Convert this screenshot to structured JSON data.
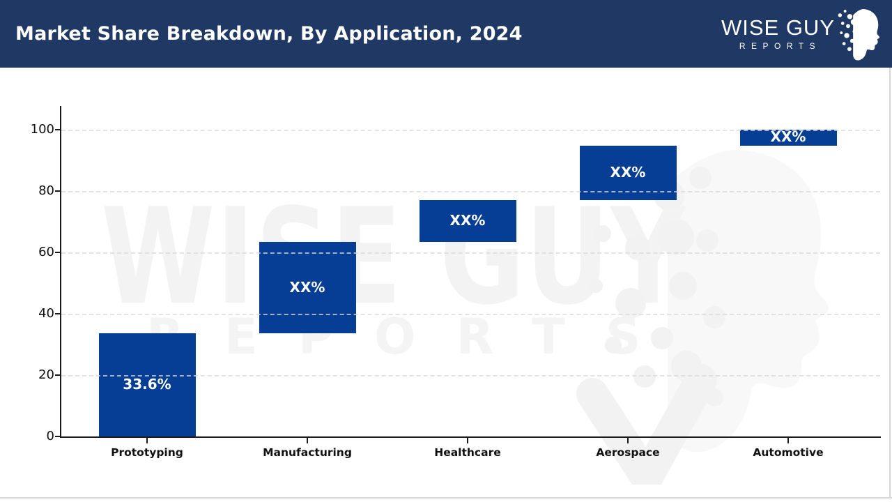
{
  "header": {
    "title": "Market Share Breakdown, By Application, 2024",
    "logo": {
      "line1": "WISE GUY",
      "line2": "REPORTS"
    }
  },
  "watermark": {
    "line1": "WISE GUY",
    "line2": "REPORTS"
  },
  "colors": {
    "header_bg": "#1f3864",
    "bar": "#053e94",
    "bar_label": "#ffffff",
    "gridline": "#d9d9d9",
    "axis": "#1a1a1a",
    "watermark": "#f3f3f3"
  },
  "chart_data": {
    "type": "bar",
    "subtype": "waterfall",
    "title": "Market Share Breakdown, By Application, 2024",
    "categories": [
      "Prototyping",
      "Manufacturing",
      "Healthcare",
      "Aerospace",
      "Automotive"
    ],
    "segments": [
      {
        "category": "Prototyping",
        "start": 0,
        "end": 33.6,
        "label": "33.6%"
      },
      {
        "category": "Manufacturing",
        "start": 33.6,
        "end": 63.4,
        "label": "XX%"
      },
      {
        "category": "Healthcare",
        "start": 63.4,
        "end": 77.0,
        "label": "XX%"
      },
      {
        "category": "Aerospace",
        "start": 77.0,
        "end": 94.8,
        "label": "XX%"
      },
      {
        "category": "Automotive",
        "start": 94.8,
        "end": 100.0,
        "label": "XX%"
      }
    ],
    "xlabel": "",
    "ylabel": "",
    "ylim": [
      0,
      107
    ],
    "yticks": [
      0,
      20,
      40,
      60,
      80,
      100
    ],
    "grid": "horizontal-dashed",
    "legend": "none"
  }
}
